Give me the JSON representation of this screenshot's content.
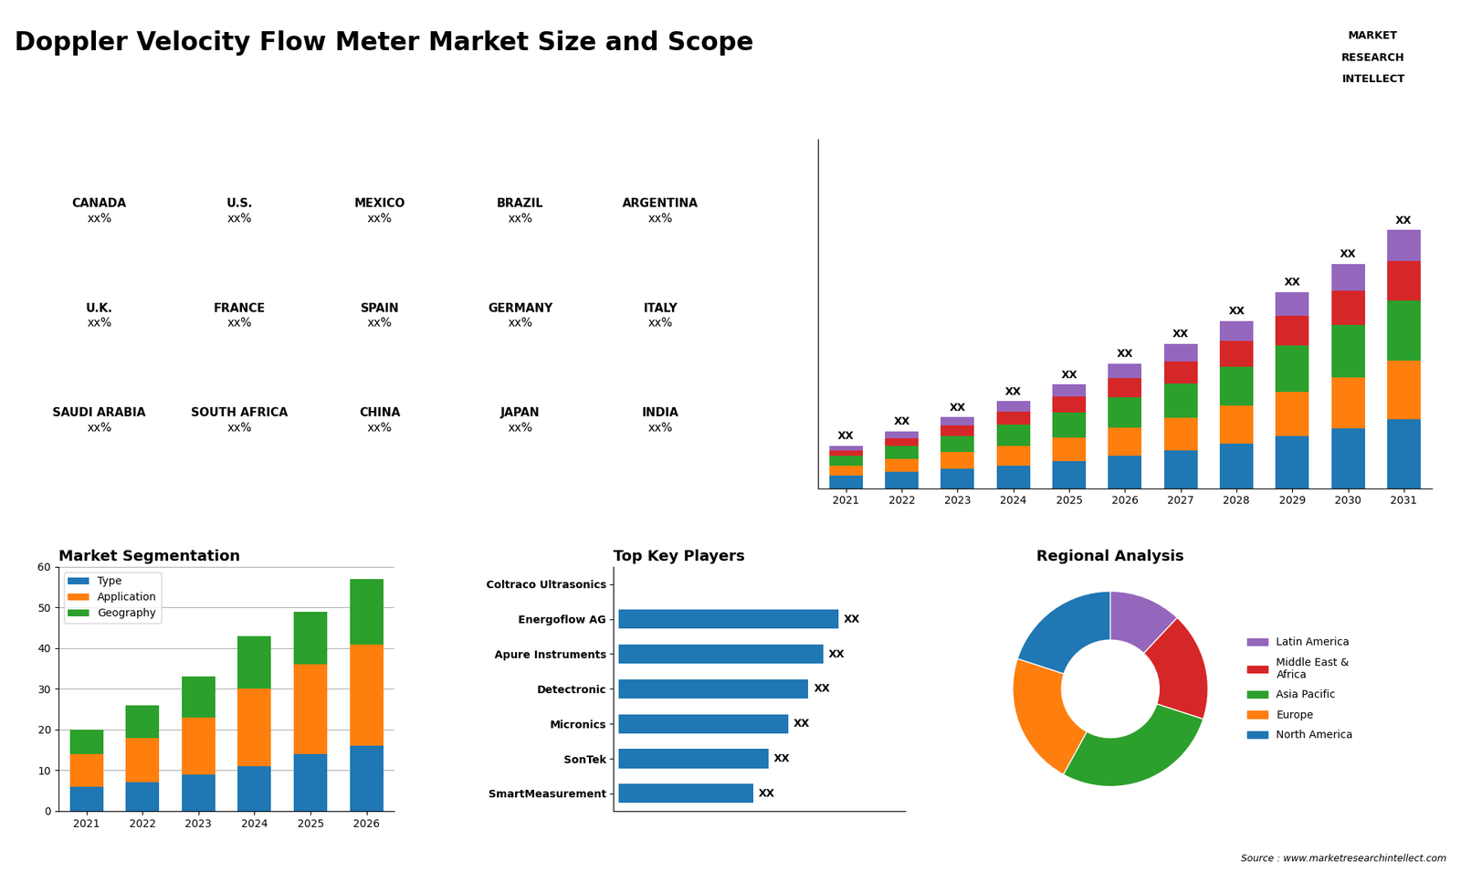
{
  "title": "Doppler Velocity Flow Meter Market Size and Scope",
  "annotations": [
    "Source : www.marketresearchintellect.com",
    "MARKET",
    "RESEARCH",
    "INTELLECT"
  ],
  "chart_data": [
    {
      "type": "map",
      "categories": [
        "CANADA",
        "U.S.",
        "MEXICO",
        "BRAZIL",
        "ARGENTINA",
        "U.K.",
        "FRANCE",
        "SPAIN",
        "GERMANY",
        "ITALY",
        "SAUDI ARABIA",
        "SOUTH AFRICA",
        "CHINA",
        "JAPAN",
        "INDIA"
      ],
      "value_labels": [
        "xx%",
        "xx%",
        "xx%",
        "xx%",
        "xx%",
        "xx%",
        "xx%",
        "xx%",
        "xx%",
        "xx%",
        "xx%",
        "xx%",
        "xx%",
        "xx%",
        "xx%"
      ]
    },
    {
      "type": "bar",
      "stacked": true,
      "categories": [
        "2021",
        "2022",
        "2023",
        "2024",
        "2025",
        "2026",
        "2027",
        "2028",
        "2029",
        "2030",
        "2031"
      ],
      "series": [
        {
          "color": "#1f77b4",
          "values": [
            2.0,
            2.5,
            3.0,
            3.5,
            4.2,
            5.0,
            5.8,
            6.8,
            8.0,
            9.2,
            10.5
          ]
        },
        {
          "color": "#ff7f0e",
          "values": [
            1.5,
            2.0,
            2.5,
            3.0,
            3.6,
            4.3,
            5.0,
            5.8,
            6.8,
            7.8,
            9.0
          ]
        },
        {
          "color": "#2ca02c",
          "values": [
            1.5,
            2.0,
            2.5,
            3.2,
            3.8,
            4.6,
            5.2,
            6.0,
            7.0,
            8.0,
            9.2
          ]
        },
        {
          "color": "#d62728",
          "values": [
            0.8,
            1.2,
            1.6,
            2.0,
            2.4,
            2.9,
            3.4,
            3.9,
            4.6,
            5.2,
            6.0
          ]
        },
        {
          "color": "#9467bd",
          "values": [
            0.7,
            1.0,
            1.3,
            1.6,
            1.9,
            2.3,
            2.7,
            3.1,
            3.6,
            4.1,
            4.8
          ]
        }
      ],
      "ylim": [
        0,
        53.325
      ],
      "tick_labels": "x",
      "data_labels": true,
      "value_labels": [
        "XX",
        "XX",
        "XX",
        "XX",
        "XX",
        "XX",
        "XX",
        "XX",
        "XX",
        "XX",
        "XX"
      ]
    },
    {
      "type": "bar",
      "title": "Market Segmentation",
      "stacked": true,
      "categories": [
        "2021",
        "2022",
        "2023",
        "2024",
        "2025",
        "2026"
      ],
      "series": [
        {
          "name": "Type",
          "values": [
            6,
            7,
            9,
            11,
            14,
            16
          ]
        },
        {
          "name": "Application",
          "values": [
            8,
            11,
            14,
            19,
            22,
            25
          ]
        },
        {
          "name": "Geography",
          "values": [
            6,
            8,
            10,
            13,
            13,
            16
          ]
        }
      ],
      "ylim": [
        0,
        60
      ],
      "yticks": [
        0,
        10,
        20,
        30,
        40,
        50,
        60
      ],
      "grid": true,
      "legend": "upper left"
    },
    {
      "type": "bar",
      "title": "Top Key Players",
      "orientation": "horizontal",
      "categories": [
        "Coltraco Ultrasonics",
        "Energoflow AG",
        "Apure Instruments",
        "Detectronic",
        "Micronics",
        "SonTek",
        "SmartMeasurement"
      ],
      "values": [
        0,
        0.88,
        0.82,
        0.76,
        0.68,
        0.6,
        0.54
      ],
      "xlim": [
        -0.02,
        1.15
      ],
      "tick_labels": "y",
      "data_labels": true,
      "value_labels": [
        null,
        "XX",
        "XX",
        "XX",
        "XX",
        "XX",
        "XX"
      ]
    },
    {
      "type": "pie",
      "title": "Regional Analysis",
      "categories": [
        "Latin America",
        "Middle East &\nAfrica",
        "Asia Pacific",
        "Europe",
        "North America"
      ],
      "values": [
        12,
        18,
        28,
        22,
        20
      ],
      "colors": [
        "#9467bd",
        "#d62728",
        "#2ca02c",
        "#ff7f0e",
        "#1f77b4"
      ],
      "legend": "center left"
    }
  ]
}
